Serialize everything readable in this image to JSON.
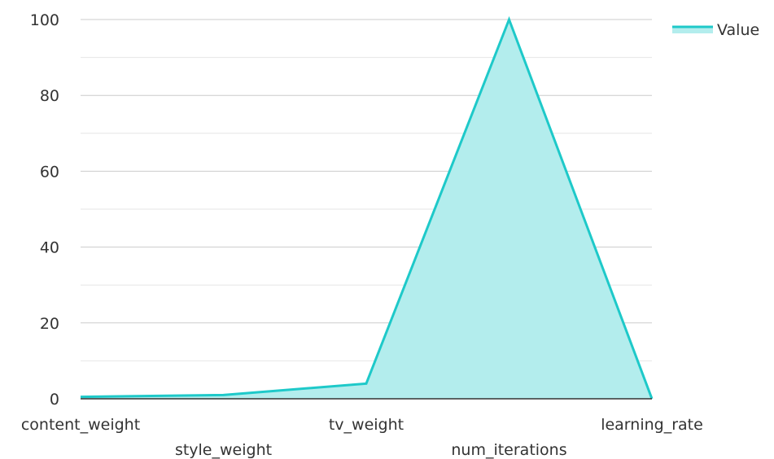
{
  "chart_data": {
    "type": "area",
    "categories": [
      "content_weight",
      "style_weight",
      "tv_weight",
      "num_iterations",
      "learning_rate"
    ],
    "series": [
      {
        "name": "Value",
        "values": [
          0.5,
          1,
          4,
          100,
          0.01
        ]
      }
    ],
    "ylim": [
      0,
      100
    ],
    "y_ticks": [
      0,
      20,
      40,
      60,
      80,
      100
    ],
    "minor_gridlines": [
      10,
      30,
      50,
      70,
      90
    ],
    "grid": true,
    "legend_position": "top-right",
    "colors": {
      "series_line": "#1ec9c9",
      "series_fill": "#b3eded",
      "grid": "#cccccc",
      "grid_minor": "#e6e6e6",
      "axis": "#333333"
    }
  }
}
